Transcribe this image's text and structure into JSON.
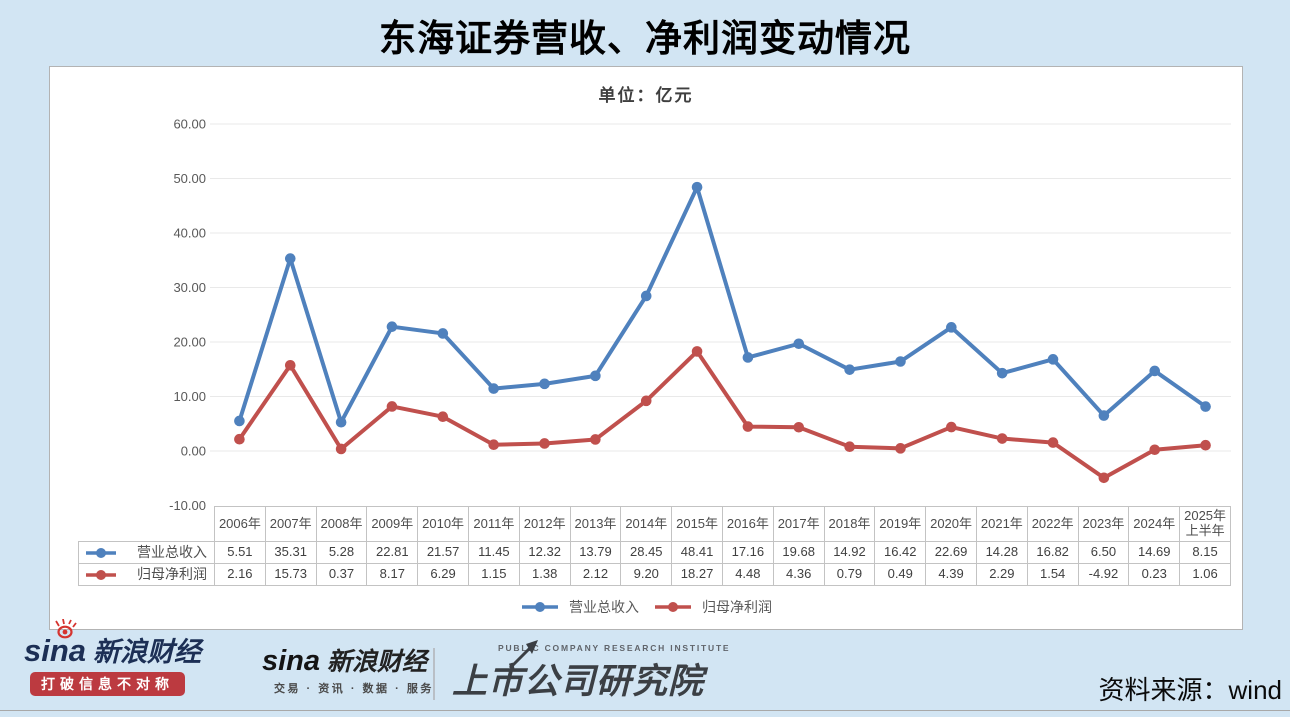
{
  "page": {
    "title": "东海证券营收、净利润变动情况"
  },
  "chart_data": {
    "type": "line",
    "title": "东海证券营收、净利润变动情况",
    "subtitle": "单位：亿元",
    "categories": [
      "2006年",
      "2007年",
      "2008年",
      "2009年",
      "2010年",
      "2011年",
      "2012年",
      "2013年",
      "2014年",
      "2015年",
      "2016年",
      "2017年",
      "2018年",
      "2019年",
      "2020年",
      "2021年",
      "2022年",
      "2023年",
      "2024年",
      "2025年上半年"
    ],
    "series": [
      {
        "name": "营业总收入",
        "color": "#4f81bd",
        "values": [
          5.51,
          35.31,
          5.28,
          22.81,
          21.57,
          11.45,
          12.32,
          13.79,
          28.45,
          48.41,
          17.16,
          19.68,
          14.92,
          16.42,
          22.69,
          14.28,
          16.82,
          6.5,
          14.69,
          8.15
        ]
      },
      {
        "name": "归母净利润",
        "color": "#c0504d",
        "values": [
          2.16,
          15.73,
          0.37,
          8.17,
          6.29,
          1.15,
          1.38,
          2.12,
          9.2,
          18.27,
          4.48,
          4.36,
          0.79,
          0.49,
          4.39,
          2.29,
          1.54,
          -4.92,
          0.23,
          1.06
        ]
      }
    ],
    "ylim": [
      -10,
      60
    ],
    "ytick_values": [
      60,
      50,
      40,
      30,
      20,
      10,
      0,
      -10
    ],
    "ytick_labels": [
      "60.00",
      "50.00",
      "40.00",
      "30.00",
      "20.00",
      "10.00",
      "0.00",
      "-10.00"
    ],
    "grid": true,
    "legend_position": "bottom",
    "value_format_decimals": 2
  },
  "footer": {
    "sina_finance_logo": {
      "brand": "sina",
      "name": "新浪财经",
      "tagline": "打破信息不对称"
    },
    "sina_services_logo": {
      "brand": "sina",
      "name": "新浪财经",
      "services": "交易 · 资讯 · 数据 · 服务"
    },
    "pcri_logo": {
      "subtitle": "PUBLIC COMPANY RESEARCH INSTITUTE",
      "name": "上市公司研究院"
    },
    "source": "资料来源：wind"
  },
  "colors": {
    "page_background": "#d2e5f3",
    "panel_background": "#ffffff",
    "revenue_line": "#4f81bd",
    "profit_line": "#c0504d",
    "gridline": "#e9e9e9",
    "axis_text": "#595959",
    "badge_red": "#bc3a40",
    "sina_navy": "#1c2f55",
    "eye_red": "#d5342f"
  }
}
